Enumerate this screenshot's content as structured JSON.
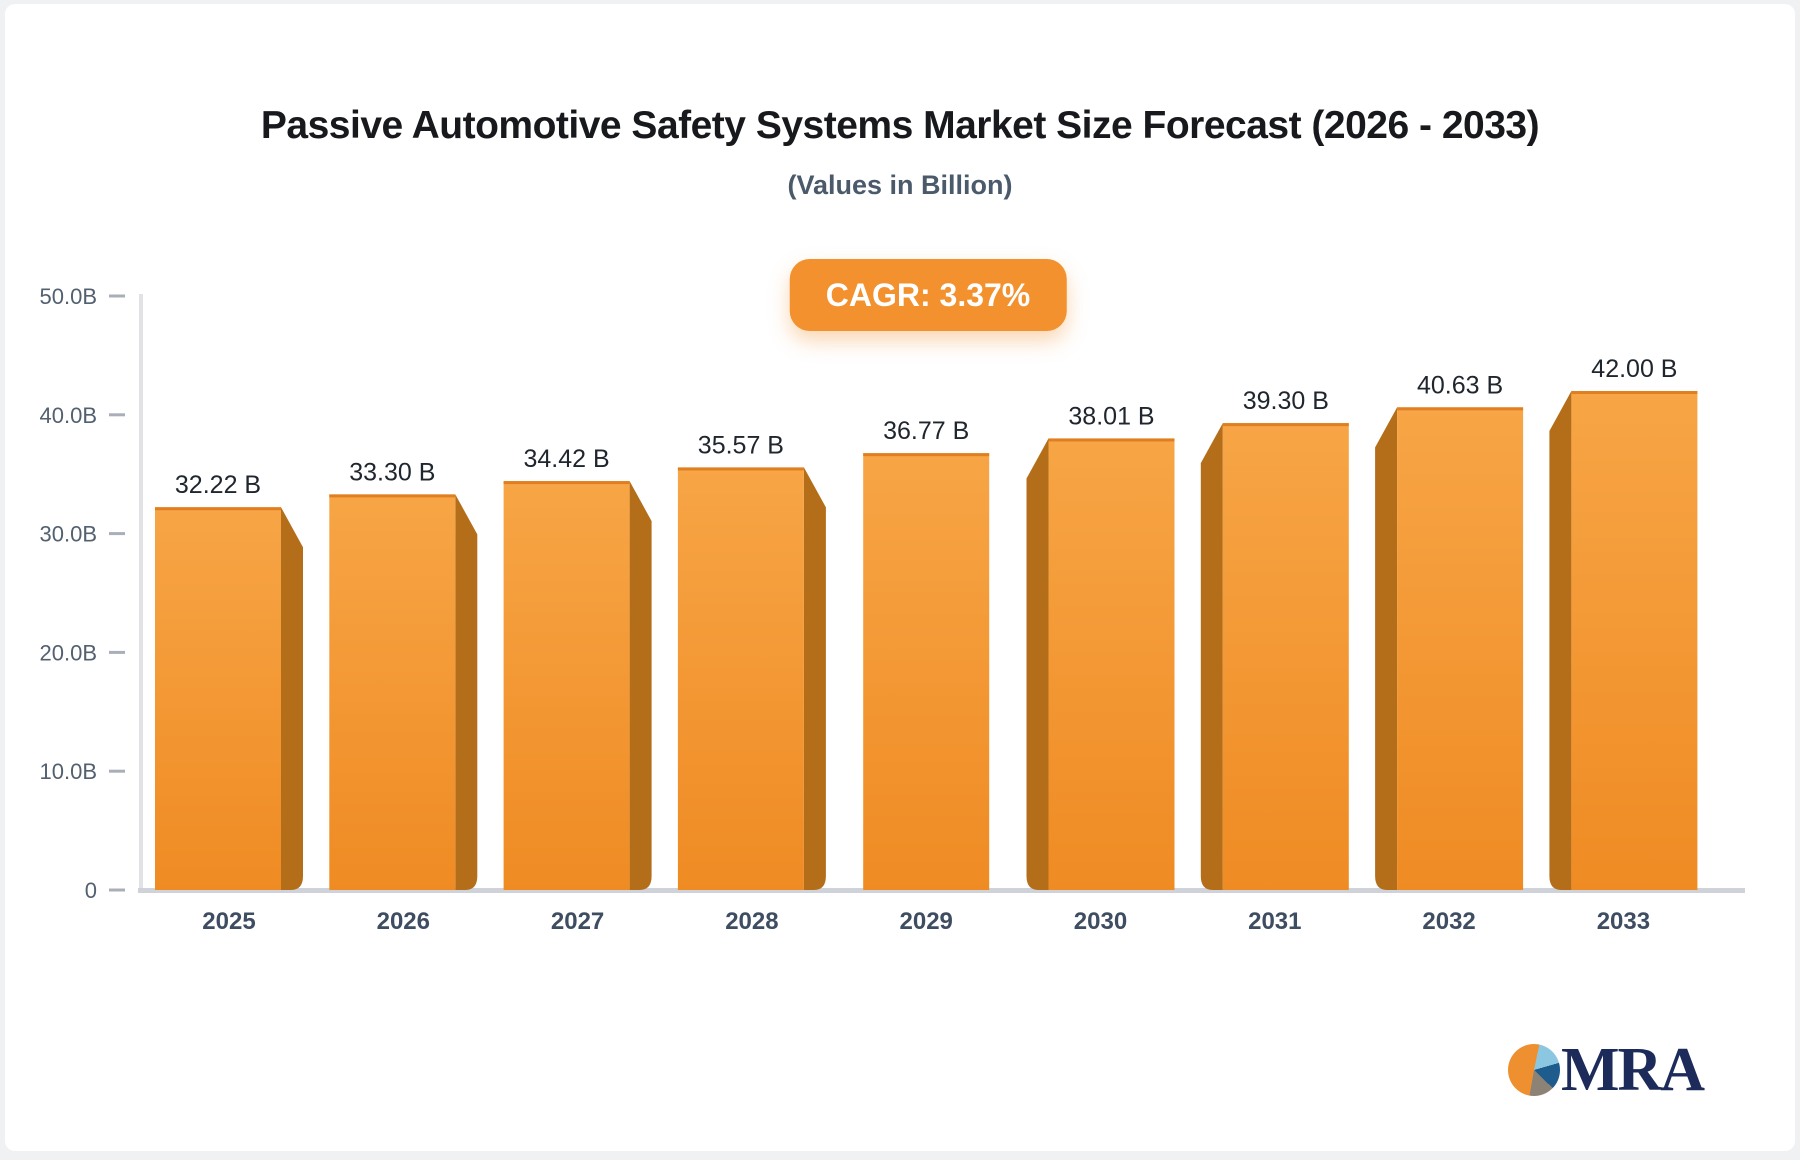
{
  "page": {
    "background_color": "#EFF1F3",
    "card_color": "#FFFFFF"
  },
  "header": {
    "title": "Passive Automotive Safety Systems Market Size Forecast (2026 - 2033)",
    "subtitle": "(Values in Billion)"
  },
  "badge": {
    "label": "CAGR: 3.37%",
    "background": "#F2912D",
    "text_color": "#FFFFFF"
  },
  "chart_data": {
    "type": "bar",
    "title": "Passive Automotive Safety Systems Market Size Forecast (2026 - 2033)",
    "subtitle": "(Values in Billion)",
    "annotation": "CAGR: 3.37%",
    "categories": [
      "2025",
      "2026",
      "2027",
      "2028",
      "2029",
      "2030",
      "2031",
      "2032",
      "2033"
    ],
    "values": [
      32.22,
      33.3,
      34.42,
      35.57,
      36.77,
      38.01,
      39.3,
      40.63,
      42.0
    ],
    "value_labels": [
      "32.22 B",
      "33.30 B",
      "34.42 B",
      "35.57 B",
      "36.77 B",
      "38.01 B",
      "39.30 B",
      "40.63 B",
      "42.00 B"
    ],
    "xlabel": "",
    "ylabel": "",
    "ylim": [
      0,
      50
    ],
    "y_ticks": [
      {
        "value": 0,
        "label": "0"
      },
      {
        "value": 10,
        "label": "10.0B"
      },
      {
        "value": 20,
        "label": "20.0B"
      },
      {
        "value": 30,
        "label": "30.0B"
      },
      {
        "value": 40,
        "label": "40.0B"
      },
      {
        "value": 50,
        "label": "50.0B"
      }
    ],
    "grid": false,
    "legend": false,
    "bar_style": {
      "effect": "3d-perspective (side faces point toward center bar)",
      "front_gradient_top": "#F7A546",
      "front_gradient_bottom": "#EF8B23",
      "front_top_edge": "#DF7F1F",
      "side_color": "#B46E1A"
    },
    "axis_style": {
      "y_axis_line": "#E0E2E6",
      "baseline": "#CFD3D9",
      "tick_mark": "#A9AFB9",
      "tick_label_color": "#536070",
      "category_label_color": "#3E4D61",
      "value_label_color": "#20262E"
    }
  },
  "logo": {
    "text": "MRA",
    "text_color": "#1C2B5A",
    "pie_icon_colors": {
      "orange": "#EF9030",
      "light_blue": "#8CC7E2",
      "dark_blue": "#1E5C8E",
      "gray": "#8D8276"
    }
  }
}
